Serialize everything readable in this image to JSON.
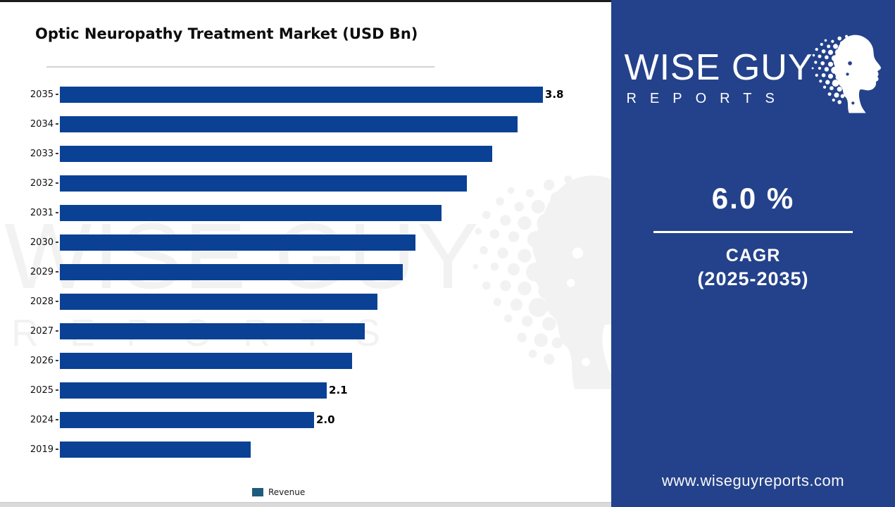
{
  "chart": {
    "title": "Optic Neuropathy Treatment Market (USD Bn)",
    "legend": {
      "label": "Revenue",
      "swatch_color": "#1f5c7c"
    }
  },
  "chart_data": {
    "type": "bar",
    "orientation": "horizontal",
    "title": "Optic Neuropathy Treatment Market (USD Bn)",
    "unit": "USD Bn",
    "categories": [
      "2035",
      "2034",
      "2033",
      "2032",
      "2031",
      "2030",
      "2029",
      "2028",
      "2027",
      "2026",
      "2025",
      "2024",
      "2019"
    ],
    "values": [
      3.8,
      3.6,
      3.4,
      3.2,
      3.0,
      2.8,
      2.7,
      2.5,
      2.4,
      2.3,
      2.1,
      2.0,
      1.5
    ],
    "data_labels": {
      "2035": "3.8",
      "2025": "2.1",
      "2024": "2.0"
    },
    "xlim": [
      0,
      4.3
    ],
    "bar_color": "#0a4194",
    "grid": false,
    "legend": [
      "Revenue"
    ],
    "legend_position": "lower center"
  },
  "watermark": {
    "title": "WISE GUY",
    "subtitle": "REPORTS"
  },
  "sidebar": {
    "logo_title": "WISE GUY",
    "logo_subtitle": "REPORTS",
    "cagr_value": "6.0 %",
    "cagr_label": "CAGR",
    "cagr_range": "(2025-2035)",
    "website": "www.wiseguyreports.com",
    "background_color": "#24428b"
  }
}
